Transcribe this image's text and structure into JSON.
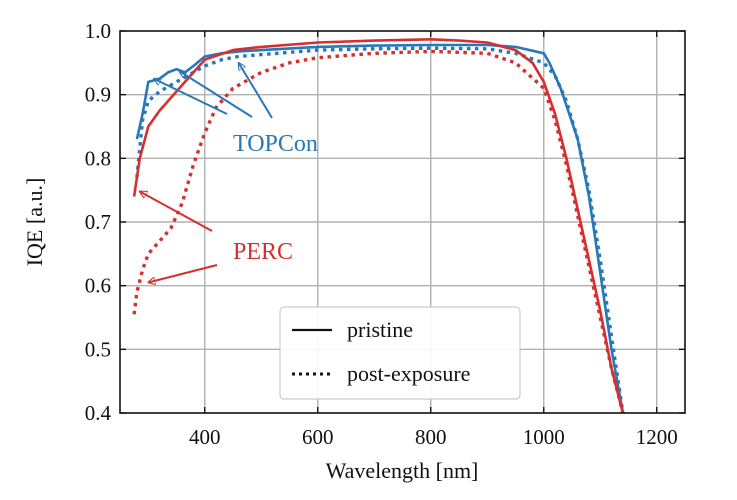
{
  "chart_data": {
    "type": "line",
    "title": "",
    "xlabel": "Wavelength [nm]",
    "ylabel": "IQE [a.u.]",
    "xlim": [
      250,
      1250
    ],
    "ylim": [
      0.4,
      1.0
    ],
    "xticks": [
      400,
      600,
      800,
      1000,
      1200
    ],
    "yticks": [
      0.4,
      0.5,
      0.6,
      0.7,
      0.8,
      0.9,
      1.0
    ],
    "xtick_labels": [
      "400",
      "600",
      "800",
      "1000",
      "1200"
    ],
    "ytick_labels": [
      "0.4",
      "0.5",
      "0.6",
      "0.7",
      "0.8",
      "0.9",
      "1.0"
    ],
    "grid": true,
    "legend_position": "bottom-center",
    "legend": [
      {
        "label": "pristine",
        "style": "solid"
      },
      {
        "label": "post-exposure",
        "style": "dotted"
      }
    ],
    "colors": {
      "TOPCon": "#2878b8",
      "PERC": "#d62f2f"
    },
    "series": [
      {
        "name": "TOPCon pristine",
        "group": "TOPCon",
        "style": "solid",
        "x": [
          280,
          290,
          300,
          320,
          335,
          350,
          365,
          380,
          400,
          430,
          460,
          500,
          600,
          700,
          800,
          900,
          950,
          1000,
          1010,
          1030,
          1060,
          1080,
          1100,
          1120,
          1140
        ],
        "y": [
          0.83,
          0.87,
          0.92,
          0.925,
          0.935,
          0.94,
          0.935,
          0.945,
          0.96,
          0.965,
          0.968,
          0.97,
          0.975,
          0.977,
          0.978,
          0.978,
          0.975,
          0.965,
          0.95,
          0.91,
          0.83,
          0.74,
          0.62,
          0.5,
          0.4
        ]
      },
      {
        "name": "TOPCon post-exposure",
        "group": "TOPCon",
        "style": "dotted",
        "x": [
          280,
          290,
          300,
          320,
          350,
          380,
          400,
          430,
          460,
          500,
          600,
          700,
          800,
          900,
          950,
          1000,
          1020,
          1040,
          1060,
          1080,
          1100,
          1120,
          1140
        ],
        "y": [
          0.77,
          0.86,
          0.89,
          0.905,
          0.92,
          0.935,
          0.945,
          0.955,
          0.96,
          0.963,
          0.97,
          0.972,
          0.973,
          0.972,
          0.965,
          0.95,
          0.93,
          0.89,
          0.83,
          0.75,
          0.64,
          0.52,
          0.4
        ]
      },
      {
        "name": "PERC pristine",
        "group": "PERC",
        "style": "solid",
        "x": [
          275,
          285,
          300,
          320,
          350,
          380,
          400,
          450,
          500,
          600,
          700,
          800,
          850,
          900,
          950,
          980,
          1000,
          1020,
          1040,
          1060,
          1080,
          1100,
          1120,
          1140
        ],
        "y": [
          0.74,
          0.8,
          0.85,
          0.875,
          0.905,
          0.935,
          0.955,
          0.97,
          0.975,
          0.982,
          0.985,
          0.987,
          0.985,
          0.982,
          0.97,
          0.95,
          0.92,
          0.87,
          0.8,
          0.72,
          0.64,
          0.56,
          0.47,
          0.4
        ]
      },
      {
        "name": "PERC post-exposure",
        "group": "PERC",
        "style": "dotted",
        "x": [
          275,
          280,
          290,
          300,
          320,
          340,
          360,
          380,
          400,
          420,
          450,
          500,
          550,
          600,
          700,
          800,
          900,
          950,
          1000,
          1020,
          1040,
          1060,
          1080,
          1100,
          1120,
          1140
        ],
        "y": [
          0.555,
          0.59,
          0.625,
          0.65,
          0.67,
          0.69,
          0.73,
          0.79,
          0.84,
          0.88,
          0.91,
          0.935,
          0.95,
          0.958,
          0.965,
          0.968,
          0.965,
          0.95,
          0.91,
          0.86,
          0.79,
          0.71,
          0.63,
          0.55,
          0.47,
          0.4
        ]
      }
    ],
    "annotations": [
      {
        "text": "TOPCon",
        "group": "TOPCon",
        "arrow_targets": [
          [
            310,
            0.925
          ],
          [
            355,
            0.937
          ],
          [
            460,
            0.95
          ]
        ]
      },
      {
        "text": "PERC",
        "group": "PERC",
        "arrow_targets": [
          [
            285,
            0.748
          ],
          [
            300,
            0.605
          ]
        ]
      }
    ]
  }
}
